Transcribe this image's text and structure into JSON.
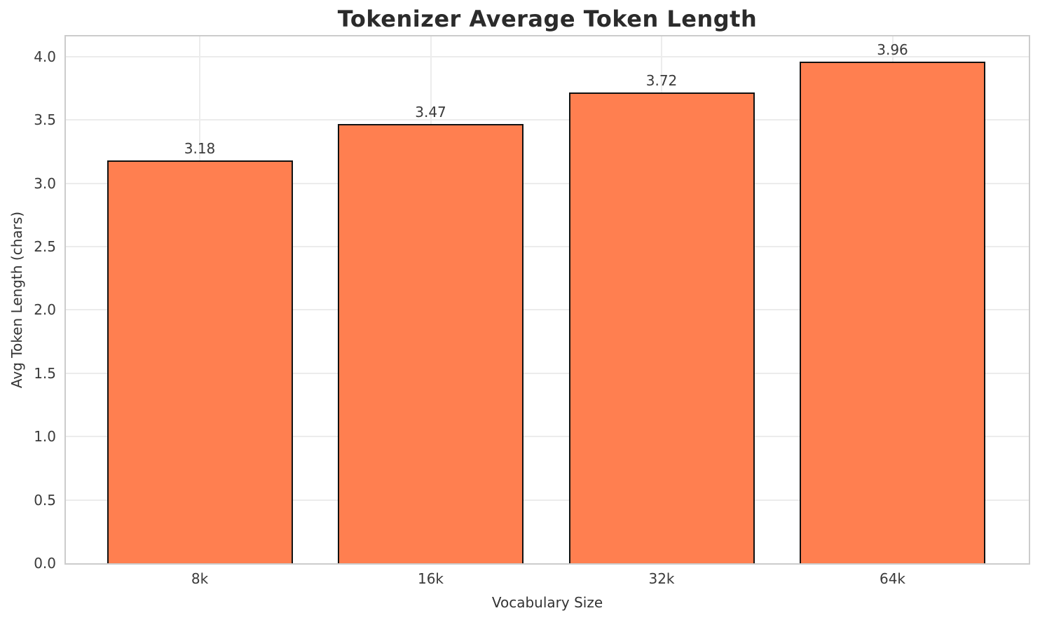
{
  "chart_data": {
    "type": "bar",
    "title": "Tokenizer Average Token Length",
    "xlabel": "Vocabulary Size",
    "ylabel": "Avg Token Length (chars)",
    "categories": [
      "8k",
      "16k",
      "32k",
      "64k"
    ],
    "values": [
      3.18,
      3.47,
      3.72,
      3.96
    ],
    "value_labels": [
      "3.18",
      "3.47",
      "3.72",
      "3.96"
    ],
    "ylim": [
      0,
      4.16
    ],
    "yticks": [
      0.0,
      0.5,
      1.0,
      1.5,
      2.0,
      2.5,
      3.0,
      3.5,
      4.0
    ],
    "ytick_labels": [
      "0.0",
      "0.5",
      "1.0",
      "1.5",
      "2.0",
      "2.5",
      "3.0",
      "3.5",
      "4.0"
    ],
    "grid": true,
    "legend": null,
    "colors": {
      "bar_fill": "#FF7F50",
      "bar_edge": "#111111",
      "grid": "#ececec",
      "spine": "#cccccc",
      "tick_text": "#3a3a3a",
      "title_text": "#2b2b2b",
      "background": "#ffffff"
    }
  }
}
